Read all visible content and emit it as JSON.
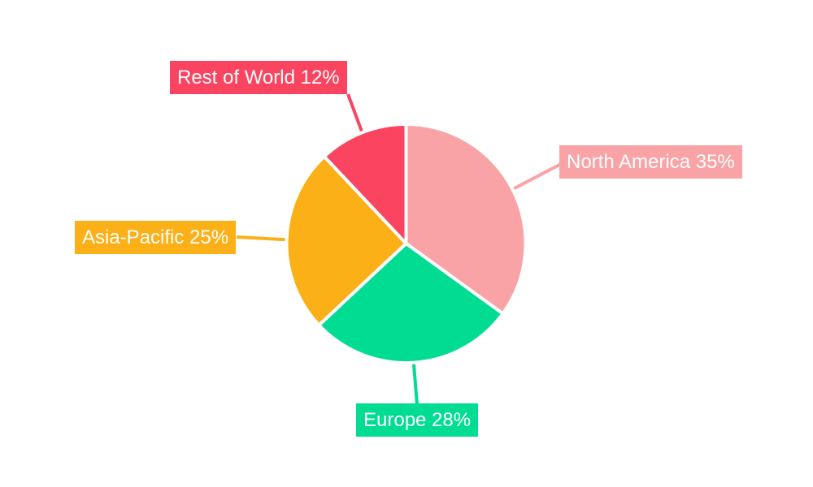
{
  "chart_data": {
    "type": "pie",
    "title": "",
    "categories": [
      "North America",
      "Europe",
      "Asia-Pacific",
      "Rest of World"
    ],
    "values": [
      35,
      28,
      25,
      12
    ],
    "unit": "%",
    "label_texts": [
      "North America 35%",
      "Europe 28%",
      "Asia-Pacific 25%",
      "Rest of World 12%"
    ],
    "colors": [
      "#F9A3A6",
      "#00DC92",
      "#FCB018",
      "#FB4560"
    ],
    "slice_border_color": "#FFFFFF",
    "label_text_color": "#FFFFFF",
    "background": "#FFFFFF",
    "start_angle": "12 o'clock",
    "direction": "clockwise",
    "legend": "none (callout labels with leader lines)",
    "grid": false
  }
}
